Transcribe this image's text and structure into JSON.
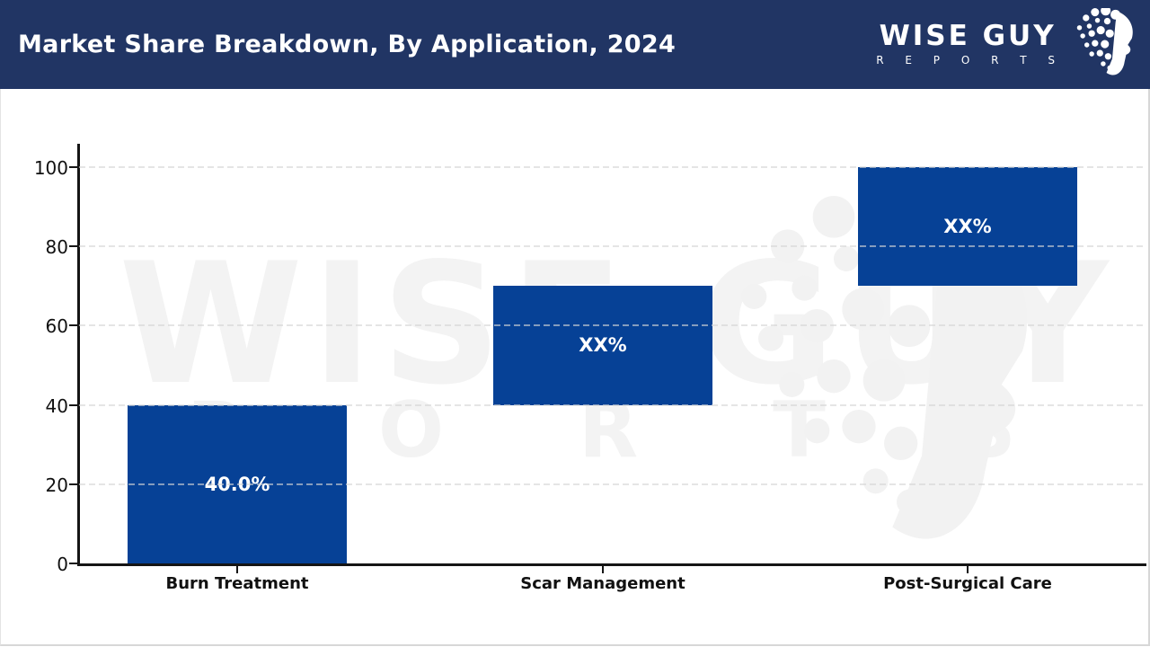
{
  "header": {
    "title": "Market Share Breakdown, By Application, 2024",
    "bg_color": "#213564",
    "logo": {
      "line1": "WISE GUY",
      "line2": "R E P O R T S"
    }
  },
  "watermark": {
    "line1": "WISE GUY",
    "line2": "P O R T S"
  },
  "chart_data": {
    "type": "bar",
    "variant": "floating-segment",
    "title": "Market Share Breakdown, By Application, 2024",
    "categories": [
      "Burn Treatment",
      "Scar Management",
      "Post-Surgical Care"
    ],
    "bars": [
      {
        "category": "Burn Treatment",
        "start": 0,
        "end": 40,
        "label": "40.0%"
      },
      {
        "category": "Scar Management",
        "start": 40,
        "end": 70,
        "label": "XX%"
      },
      {
        "category": "Post-Surgical Care",
        "start": 70,
        "end": 100,
        "label": "XX%"
      }
    ],
    "xlabel": "",
    "ylabel": "",
    "ylim": [
      0,
      100
    ],
    "yticks": [
      0,
      20,
      40,
      60,
      80,
      100
    ],
    "grid": "horizontal-dashed",
    "legend": "none",
    "bar_color": "#064196",
    "grid_color": "rgba(213,213,213,0.62)",
    "axis_color": "#151515"
  }
}
